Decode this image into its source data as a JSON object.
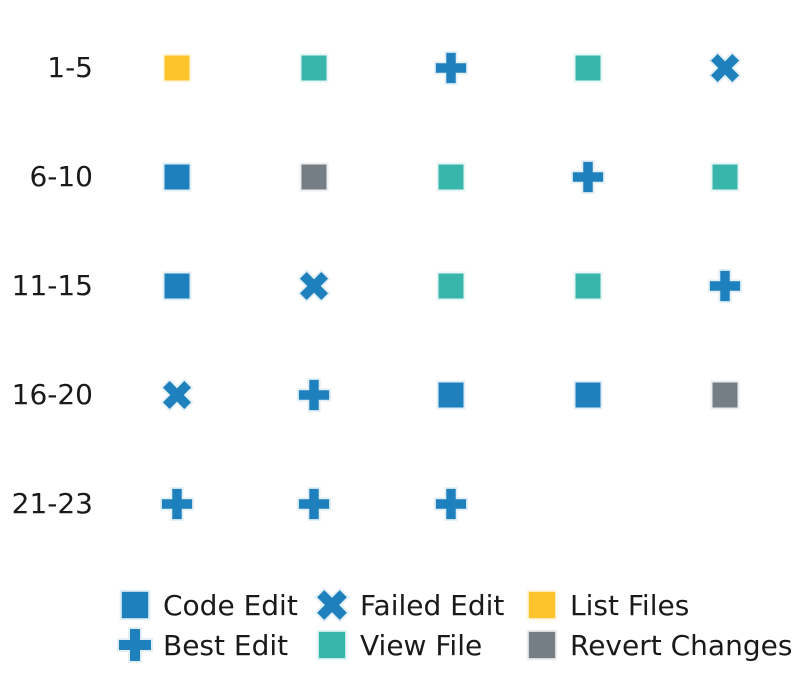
{
  "chart_data": {
    "type": "scatter",
    "title": "",
    "xlabel": "",
    "ylabel": "",
    "grid": false,
    "legend_position": "bottom",
    "legend_columns": 3,
    "rows": [
      "1-5",
      "6-10",
      "11-15",
      "16-20",
      "21-23"
    ],
    "columns_per_row": 5,
    "actions": {
      "code_edit": {
        "label": "Code Edit",
        "marker": "square",
        "color": "#1e81bd"
      },
      "failed_edit": {
        "label": "Failed Edit",
        "marker": "x",
        "color": "#1e81bd"
      },
      "list_files": {
        "label": "List Files",
        "marker": "square",
        "color": "#fdc32a"
      },
      "best_edit": {
        "label": "Best Edit",
        "marker": "plus",
        "color": "#1e81bd"
      },
      "view_file": {
        "label": "View File",
        "marker": "square",
        "color": "#38b6ab"
      },
      "revert_changes": {
        "label": "Revert Changes",
        "marker": "square",
        "color": "#757d85"
      }
    },
    "cells": [
      [
        "list_files",
        "view_file",
        "best_edit",
        "view_file",
        "failed_edit"
      ],
      [
        "code_edit",
        "revert_changes",
        "view_file",
        "best_edit",
        "view_file"
      ],
      [
        "code_edit",
        "failed_edit",
        "view_file",
        "view_file",
        "best_edit"
      ],
      [
        "failed_edit",
        "best_edit",
        "code_edit",
        "code_edit",
        "revert_changes"
      ],
      [
        "best_edit",
        "best_edit",
        "best_edit",
        null,
        null
      ]
    ],
    "legend_order": [
      "code_edit",
      "failed_edit",
      "list_files",
      "best_edit",
      "view_file",
      "revert_changes"
    ],
    "colors": {
      "blue": "#1e81bd",
      "teal": "#38b6ab",
      "yellow": "#fdc32a",
      "gray": "#757d85",
      "text": "#1a1a1a",
      "background": "#ffffff"
    }
  }
}
